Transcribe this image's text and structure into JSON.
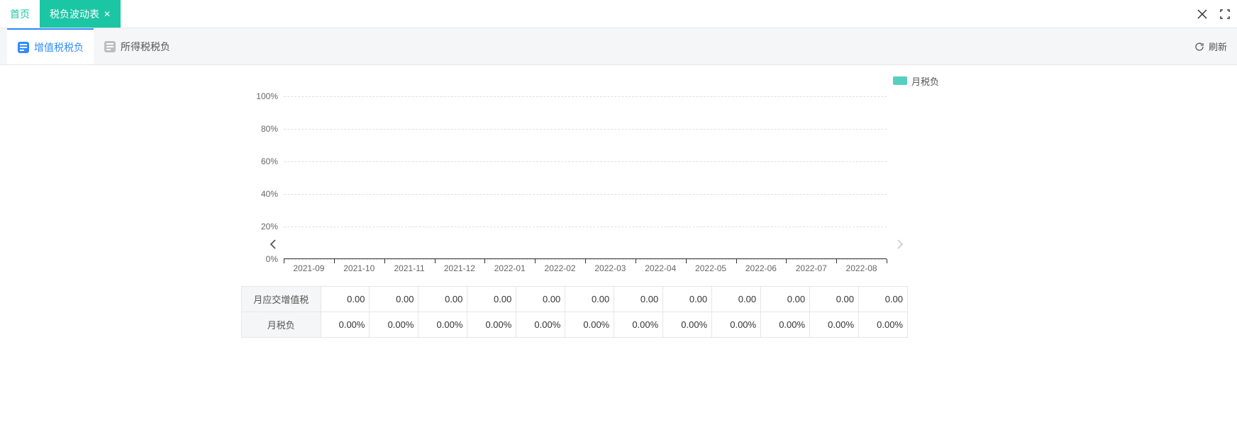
{
  "topTabs": {
    "home": "首页",
    "active": {
      "label": "税负波动表",
      "closable": true
    }
  },
  "subTabs": [
    {
      "label": "增值税税负",
      "active": true,
      "iconColor": "#2f8cff"
    },
    {
      "label": "所得税税负",
      "active": false,
      "iconColor": "#bdbdbd"
    }
  ],
  "toolbar": {
    "refresh": "刷新"
  },
  "chart": {
    "type": "bar",
    "legend": {
      "label": "月税负",
      "color": "#55d0bd"
    },
    "ylim": [
      0,
      100
    ],
    "yticks": [
      0,
      20,
      40,
      60,
      80,
      100
    ],
    "ytick_labels": [
      "0%",
      "20%",
      "40%",
      "60%",
      "80%",
      "100%"
    ],
    "grid_color": "#e0e0e0",
    "categories": [
      "2021-09",
      "2021-10",
      "2021-11",
      "2021-12",
      "2022-01",
      "2022-02",
      "2022-03",
      "2022-04",
      "2022-05",
      "2022-06",
      "2022-07",
      "2022-08"
    ],
    "values": [
      0,
      0,
      0,
      0,
      0,
      0,
      0,
      0,
      0,
      0,
      0,
      0
    ],
    "bar_color": "#55d0bd",
    "background_color": "#ffffff"
  },
  "table": {
    "rows": [
      {
        "header": "月应交增值税",
        "cells": [
          "0.00",
          "0.00",
          "0.00",
          "0.00",
          "0.00",
          "0.00",
          "0.00",
          "0.00",
          "0.00",
          "0.00",
          "0.00",
          "0.00"
        ]
      },
      {
        "header": "月税负",
        "cells": [
          "0.00%",
          "0.00%",
          "0.00%",
          "0.00%",
          "0.00%",
          "0.00%",
          "0.00%",
          "0.00%",
          "0.00%",
          "0.00%",
          "0.00%",
          "0.00%"
        ]
      }
    ]
  }
}
